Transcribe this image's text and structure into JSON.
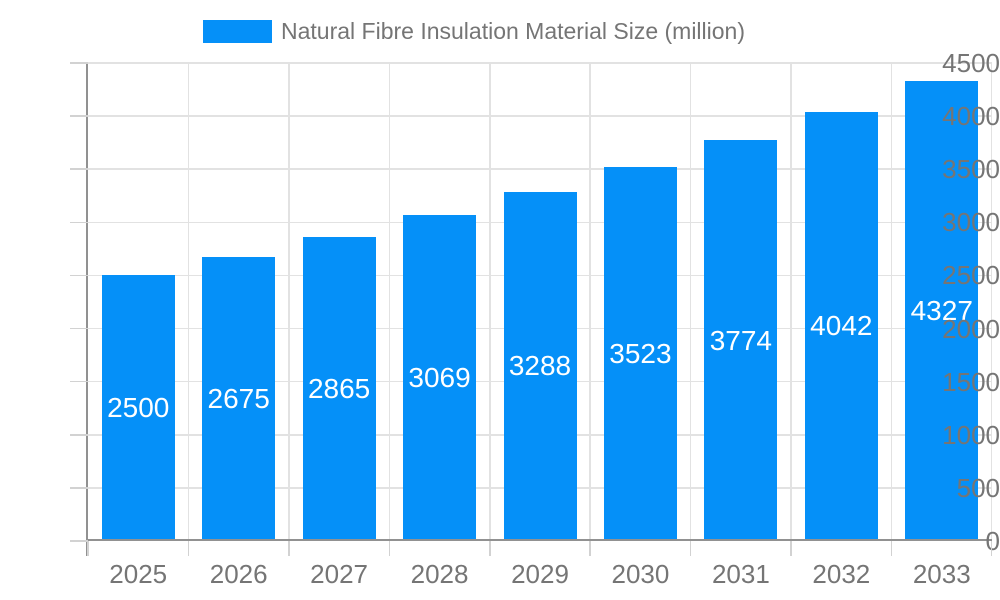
{
  "chart_data": {
    "type": "bar",
    "legend": [
      "Natural Fibre Insulation Material Size (million)"
    ],
    "legend_position": "top",
    "categories": [
      "2025",
      "2026",
      "2027",
      "2028",
      "2029",
      "2030",
      "2031",
      "2032",
      "2033"
    ],
    "values": [
      2500,
      2675,
      2865,
      3069,
      3288,
      3523,
      3774,
      4042,
      4327
    ],
    "bar_value_labels": [
      "2500",
      "2675",
      "2865",
      "3069",
      "3288",
      "3523",
      "3774",
      "4042",
      "4327"
    ],
    "xlabel": "",
    "ylabel": "",
    "ylim": [
      0,
      4500
    ],
    "ytick_step": 500,
    "yticks": [
      0,
      500,
      1000,
      1500,
      2000,
      2500,
      3000,
      3500,
      4000,
      4500
    ],
    "grid": true,
    "colors": {
      "bar": "#0590f8",
      "bar_label": "#ffffff",
      "grid": "#e2e2e2",
      "tick": "#d2d2d2",
      "axis": "#919191",
      "tick_text": "#757575"
    }
  }
}
